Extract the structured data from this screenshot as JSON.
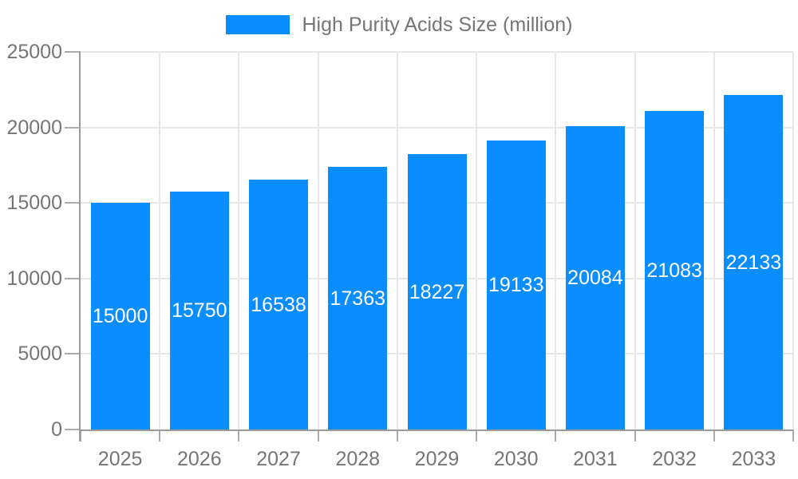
{
  "chart_data": {
    "type": "bar",
    "legend": "High Purity Acids Size (million)",
    "categories": [
      "2025",
      "2026",
      "2027",
      "2028",
      "2029",
      "2030",
      "2031",
      "2032",
      "2033"
    ],
    "values": [
      15000,
      15750,
      16538,
      17363,
      18227,
      19133,
      20084,
      21083,
      22133
    ],
    "title": "",
    "xlabel": "",
    "ylabel": "",
    "ylim": [
      0,
      25000
    ],
    "yticks": [
      0,
      5000,
      10000,
      15000,
      20000,
      25000
    ],
    "grid": true,
    "legend_position": "top-center",
    "colors": {
      "bar": "#0A8DFF",
      "bar_label_text": "#ffffff",
      "axis_text": "#757575",
      "axis_line": "#9b9b9b",
      "tick": "#ababab",
      "gridline": "#e7e7e7",
      "background": "#ffffff"
    }
  }
}
